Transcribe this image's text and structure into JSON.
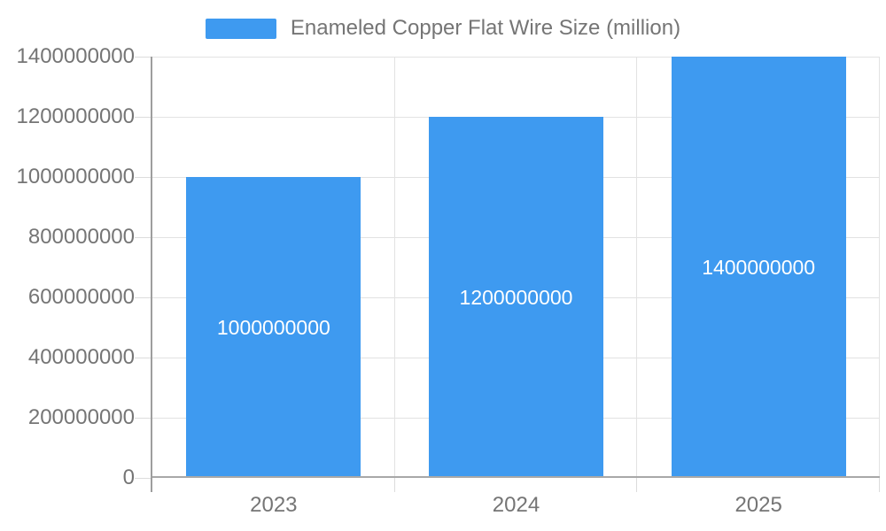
{
  "legend": {
    "label": "Enameled Copper Flat Wire Size (million)",
    "swatch_color": "#3E9AF0"
  },
  "chart_data": {
    "type": "bar",
    "title": "Enameled Copper Flat Wire Size (million)",
    "categories": [
      "2023",
      "2024",
      "2025"
    ],
    "values": [
      1000000000,
      1200000000,
      1400000000
    ],
    "data_labels": [
      "1000000000",
      "1200000000",
      "1400000000"
    ],
    "xlabel": "",
    "ylabel": "",
    "ylim": [
      0,
      1400000000
    ],
    "ytick_step": 200000000,
    "ytick_labels": [
      "0",
      "200000000",
      "400000000",
      "600000000",
      "800000000",
      "1000000000",
      "1200000000",
      "1400000000"
    ],
    "grid": true,
    "legend_position": "top",
    "bar_color": "#3E9AF0",
    "bar_label_color": "#FFFFFF",
    "tick_label_color": "#757575",
    "gridline_color": "#E2E2E2",
    "axis_line_color": "#9E9E9E"
  }
}
